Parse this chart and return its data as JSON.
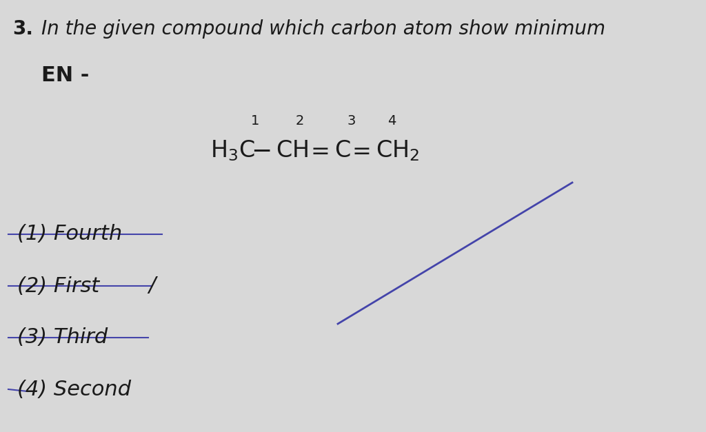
{
  "background_color": "#d8d8d8",
  "question_number": "3.",
  "question_line1": "In the given compound which carbon atom show minimum",
  "question_line2": "EN -",
  "numbering": [
    "1",
    "2",
    "3",
    "4"
  ],
  "options": [
    {
      "num": "(1)",
      "text": "Fourth",
      "strikethrough": true,
      "checkmark": false
    },
    {
      "num": "(2)",
      "text": "First",
      "strikethrough": true,
      "checkmark": true
    },
    {
      "num": "(3)",
      "text": "Third",
      "strikethrough": true,
      "checkmark": false
    },
    {
      "num": "(4)",
      "text": "Second",
      "strikethrough": false,
      "checkmark": false
    }
  ],
  "text_color": "#1a1a1a",
  "pen_color": "#4444aa",
  "font_size_question": 20,
  "font_size_formula": 24,
  "font_size_options": 22,
  "font_size_numbering": 14,
  "diagonal_line": [
    [
      620,
      270
    ],
    [
      490,
      420
    ]
  ],
  "strikethrough_lines": [
    [
      10,
      355,
      230,
      355
    ],
    [
      10,
      435,
      230,
      435
    ],
    [
      10,
      515,
      210,
      515
    ]
  ]
}
